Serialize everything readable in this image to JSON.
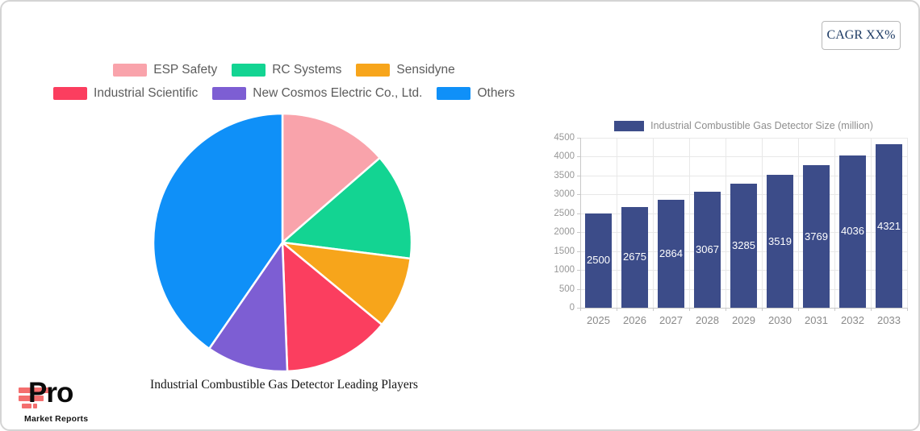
{
  "badge": {
    "label": "CAGR XX%"
  },
  "logo": {
    "title": "Pro",
    "subtitle": "Market Reports",
    "accent_color": "#f46e6e"
  },
  "legend": {
    "rows": [
      [
        {
          "label": "ESP Safety",
          "color": "#f9a3ab"
        },
        {
          "label": "RC Systems",
          "color": "#13d492"
        },
        {
          "label": "Sensidyne",
          "color": "#f7a51b"
        }
      ],
      [
        {
          "label": "Industrial Scientific",
          "color": "#fb3e5f"
        },
        {
          "label": "New Cosmos Electric Co., Ltd.",
          "color": "#7d5ed3"
        },
        {
          "label": "Others",
          "color": "#0f90f8"
        }
      ]
    ]
  },
  "chart_data": [
    {
      "type": "pie",
      "title": "Industrial Combustible Gas Detector Leading Players",
      "labels": [
        "ESP Safety",
        "RC Systems",
        "Sensidyne",
        "Industrial Scientific",
        "New Cosmos Electric Co., Ltd.",
        "Others"
      ],
      "values": [
        13.6,
        13.4,
        9.0,
        13.4,
        10.2,
        40.4
      ],
      "unit": "percent share (estimated from slice angles)",
      "colors": [
        "#f9a3ab",
        "#13d492",
        "#f7a51b",
        "#fb3e5f",
        "#7d5ed3",
        "#0f90f8"
      ],
      "start_angle_deg": 0,
      "direction": "clockwise",
      "legend_position": "top",
      "slice_border_color": "#ffffff"
    },
    {
      "type": "bar",
      "series": [
        {
          "name": "Industrial Combustible Gas Detector Size (million)",
          "values": [
            2500,
            2675,
            2864,
            3067,
            3285,
            3519,
            3769,
            4036,
            4321
          ]
        }
      ],
      "categories": [
        "2025",
        "2026",
        "2027",
        "2028",
        "2029",
        "2030",
        "2031",
        "2032",
        "2033"
      ],
      "ylim": [
        0,
        4500
      ],
      "ytick_step": 500,
      "yticks": [
        0,
        500,
        1000,
        1500,
        2000,
        2500,
        3000,
        3500,
        4000,
        4500
      ],
      "bar_color": "#3c4c89",
      "value_label_color": "#ffffff",
      "grid": true,
      "legend_position": "top"
    }
  ]
}
